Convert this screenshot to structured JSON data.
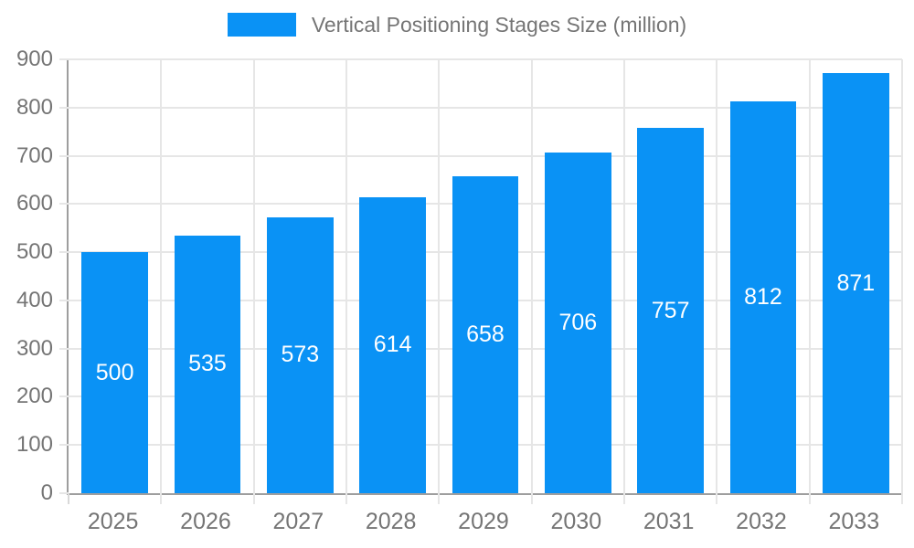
{
  "legend": {
    "label": "Vertical Positioning Stages Size (million)",
    "swatch_color": "#0a92f5"
  },
  "chart_data": {
    "type": "bar",
    "title": "Vertical Positioning Stages Size (million)",
    "categories": [
      "2025",
      "2026",
      "2027",
      "2028",
      "2029",
      "2030",
      "2031",
      "2032",
      "2033"
    ],
    "values": [
      500,
      535,
      573,
      614,
      658,
      706,
      757,
      812,
      871
    ],
    "xlabel": "",
    "ylabel": "",
    "ylim": [
      0,
      900
    ],
    "yticks": [
      0,
      100,
      200,
      300,
      400,
      500,
      600,
      700,
      800,
      900
    ],
    "grid": true,
    "legend_position": "top-center",
    "bar_color": "#0a92f5",
    "value_label_color": "#ffffff",
    "axis_text_color": "#757575",
    "bar_width_fraction": 0.72
  }
}
